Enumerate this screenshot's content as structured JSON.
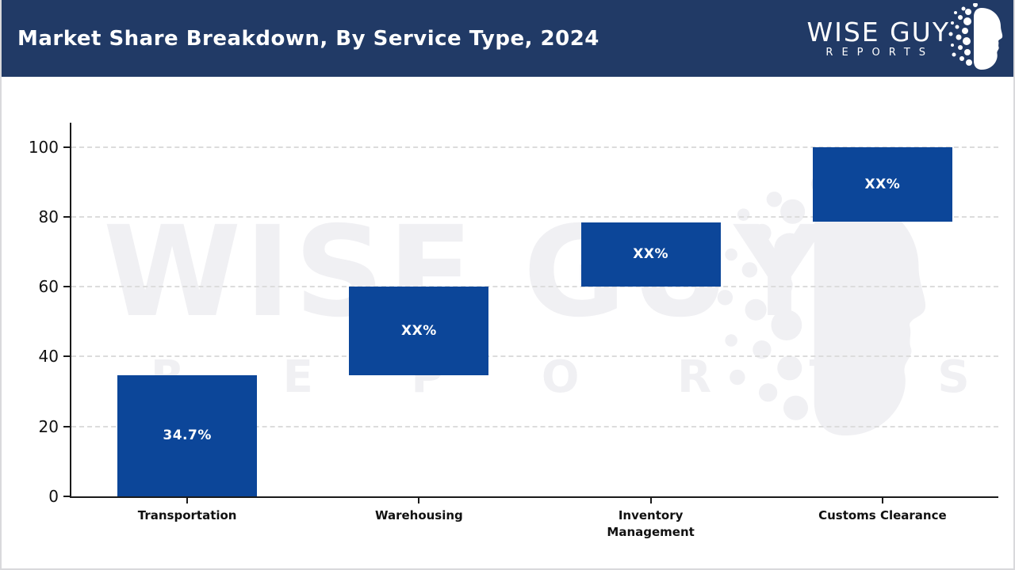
{
  "header": {
    "title": "Market Share Breakdown, By Service Type, 2024",
    "logo": {
      "primary": "WISE GUY",
      "secondary": "REPORTS"
    }
  },
  "watermark": {
    "primary": "WISE GUY",
    "secondary": "R E P O R T S"
  },
  "colors": {
    "header_bg": "#213a66",
    "bar": "#0c4699",
    "bar_label": "#ffffff",
    "grid": "#dcdcdc",
    "axis": "#1a1a1a",
    "watermark": "#f0f0f3",
    "page_border": "#d9d9dc"
  },
  "chart_data": {
    "type": "bar",
    "subtype": "waterfall",
    "title": "Market Share Breakdown, By Service Type, 2024",
    "categories": [
      "Transportation",
      "Warehousing",
      "Inventory\nManagement",
      "Customs Clearance"
    ],
    "series": [
      {
        "name": "Market share (%)",
        "base": [
          0,
          34.7,
          60,
          78.5
        ],
        "top": [
          34.7,
          60,
          78.5,
          100
        ]
      }
    ],
    "bar_labels": [
      "34.7%",
      "XX%",
      "XX%",
      "XX%"
    ],
    "yticks": [
      0,
      20,
      40,
      60,
      80,
      100
    ],
    "ylim": [
      0,
      100
    ],
    "xlabel": "",
    "ylabel": "",
    "grid": true,
    "grid_style": "dashed",
    "legend": "none"
  }
}
